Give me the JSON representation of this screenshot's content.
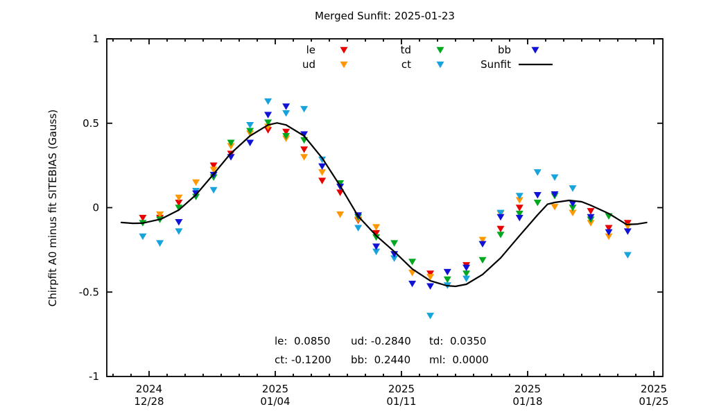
{
  "chart_data": {
    "type": "scatter",
    "title": "Merged Sunfit: 2025-01-23",
    "ylabel": "Chirpfit A0 minus fit SITEBIAS (Gauss)",
    "y_axis": {
      "range": [
        -1,
        1
      ],
      "ticks": [
        {
          "v": 1,
          "label": "1"
        },
        {
          "v": 0.5,
          "label": "0.5"
        },
        {
          "v": 0,
          "label": "0"
        },
        {
          "v": -0.5,
          "label": "-0.5"
        },
        {
          "v": -1,
          "label": "-1"
        }
      ]
    },
    "x_axis": {
      "view_days": [
        -2.35,
        28.5
      ],
      "minor_day_step": 1,
      "major_ticks": [
        {
          "day": 0,
          "year": "2024",
          "date": "12/28"
        },
        {
          "day": 7,
          "year": "2025",
          "date": "01/04"
        },
        {
          "day": 14,
          "year": "2025",
          "date": "01/11"
        },
        {
          "day": 21,
          "year": "2025",
          "date": "01/18"
        },
        {
          "day": 28,
          "year": "2025",
          "date": "01/25"
        }
      ]
    },
    "dates": [
      "12/27",
      "12/28",
      "12/29",
      "12/30",
      "12/31",
      "01/01",
      "01/02",
      "01/03",
      "01/04",
      "01/05",
      "01/06",
      "01/07",
      "01/08",
      "01/09",
      "01/10",
      "01/11",
      "01/12",
      "01/13",
      "01/14",
      "01/15",
      "01/16",
      "01/17",
      "01/18",
      "01/19",
      "01/20",
      "01/21",
      "01/22",
      "01/23"
    ],
    "x_days": [
      -0.35,
      0.6,
      1.65,
      2.6,
      3.58,
      4.54,
      5.6,
      6.6,
      7.6,
      8.6,
      9.6,
      10.6,
      11.6,
      12.6,
      13.6,
      14.6,
      15.6,
      16.55,
      17.6,
      18.5,
      19.5,
      20.55,
      21.55,
      22.5,
      23.5,
      24.5,
      25.5,
      26.55
    ],
    "series": [
      {
        "id": "le",
        "label": "le",
        "color": "#e60000",
        "values": [
          -0.06,
          -0.06,
          0.03,
          null,
          0.25,
          0.32,
          null,
          0.46,
          0.45,
          0.345,
          0.16,
          0.09,
          -0.075,
          -0.15,
          null,
          null,
          -0.39,
          null,
          -0.34,
          null,
          -0.125,
          0.0,
          null,
          null,
          null,
          -0.02,
          -0.12,
          -0.09
        ]
      },
      {
        "id": "ud",
        "label": "ud",
        "color": "#ff9800",
        "values": [
          null,
          -0.04,
          0.06,
          0.15,
          0.225,
          0.365,
          0.44,
          0.48,
          0.41,
          0.3,
          0.21,
          -0.04,
          -0.07,
          -0.115,
          null,
          -0.385,
          -0.41,
          null,
          null,
          -0.19,
          -0.035,
          0.045,
          null,
          0.005,
          -0.03,
          -0.09,
          -0.17,
          -0.11
        ]
      },
      {
        "id": "td",
        "label": "td",
        "color": "#00a820",
        "values": [
          -0.09,
          -0.07,
          0.0,
          0.065,
          0.18,
          0.385,
          0.455,
          0.505,
          0.425,
          0.4,
          null,
          0.145,
          -0.055,
          -0.175,
          -0.21,
          -0.32,
          null,
          -0.425,
          -0.39,
          -0.31,
          -0.16,
          -0.035,
          0.03,
          0.07,
          0.0,
          -0.07,
          -0.05,
          null
        ]
      },
      {
        "id": "ct",
        "label": "ct",
        "color": "#17a3dc",
        "values": [
          -0.17,
          -0.21,
          -0.14,
          0.1,
          0.105,
          null,
          0.49,
          0.63,
          0.56,
          0.585,
          0.285,
          0.125,
          -0.12,
          -0.26,
          -0.3,
          null,
          -0.64,
          -0.46,
          -0.42,
          null,
          -0.03,
          0.07,
          0.21,
          0.18,
          0.115,
          null,
          null,
          -0.28
        ]
      },
      {
        "id": "bb",
        "label": "bb",
        "color": "#1013d6",
        "values": [
          null,
          null,
          -0.085,
          0.085,
          0.195,
          0.3,
          0.385,
          0.55,
          0.6,
          0.435,
          0.245,
          0.125,
          -0.045,
          -0.23,
          -0.275,
          -0.45,
          -0.465,
          -0.38,
          -0.355,
          -0.215,
          -0.055,
          -0.06,
          0.075,
          0.08,
          0.025,
          -0.055,
          -0.145,
          -0.14
        ]
      }
    ],
    "sunfit": {
      "label": "Sunfit",
      "color": "#000000",
      "points": [
        [
          -1.54,
          -0.088
        ],
        [
          -0.9,
          -0.093
        ],
        [
          -0.38,
          -0.092
        ],
        [
          0.65,
          -0.068
        ],
        [
          1.65,
          -0.014
        ],
        [
          2.6,
          0.076
        ],
        [
          3.55,
          0.195
        ],
        [
          4.5,
          0.318
        ],
        [
          5.6,
          0.425
        ],
        [
          6.6,
          0.49
        ],
        [
          7.1,
          0.502
        ],
        [
          7.6,
          0.49
        ],
        [
          8.6,
          0.425
        ],
        [
          9.6,
          0.294
        ],
        [
          10.6,
          0.129
        ],
        [
          11.6,
          -0.051
        ],
        [
          12.6,
          -0.166
        ],
        [
          13.6,
          -0.26
        ],
        [
          14.6,
          -0.363
        ],
        [
          15.6,
          -0.433
        ],
        [
          16.5,
          -0.462
        ],
        [
          17.0,
          -0.466
        ],
        [
          17.6,
          -0.454
        ],
        [
          18.5,
          -0.396
        ],
        [
          19.5,
          -0.298
        ],
        [
          20.55,
          -0.166
        ],
        [
          21.55,
          -0.043
        ],
        [
          22.1,
          0.02
        ],
        [
          22.5,
          0.031
        ],
        [
          23.3,
          0.043
        ],
        [
          24.0,
          0.035
        ],
        [
          24.5,
          0.014
        ],
        [
          25.5,
          -0.035
        ],
        [
          26.5,
          -0.1
        ],
        [
          27.1,
          -0.097
        ],
        [
          27.6,
          -0.088
        ]
      ]
    },
    "legend": {
      "rows": [
        [
          "le",
          "td",
          "bb"
        ],
        [
          "ud",
          "ct",
          "Sunfit"
        ]
      ]
    },
    "stats": {
      "row1": [
        "le:  0.0850",
        "ud: -0.2840",
        "td:  0.0350"
      ],
      "row2": [
        "ct: -0.1200",
        "bb:  0.2440",
        "ml:  0.0000"
      ]
    }
  }
}
